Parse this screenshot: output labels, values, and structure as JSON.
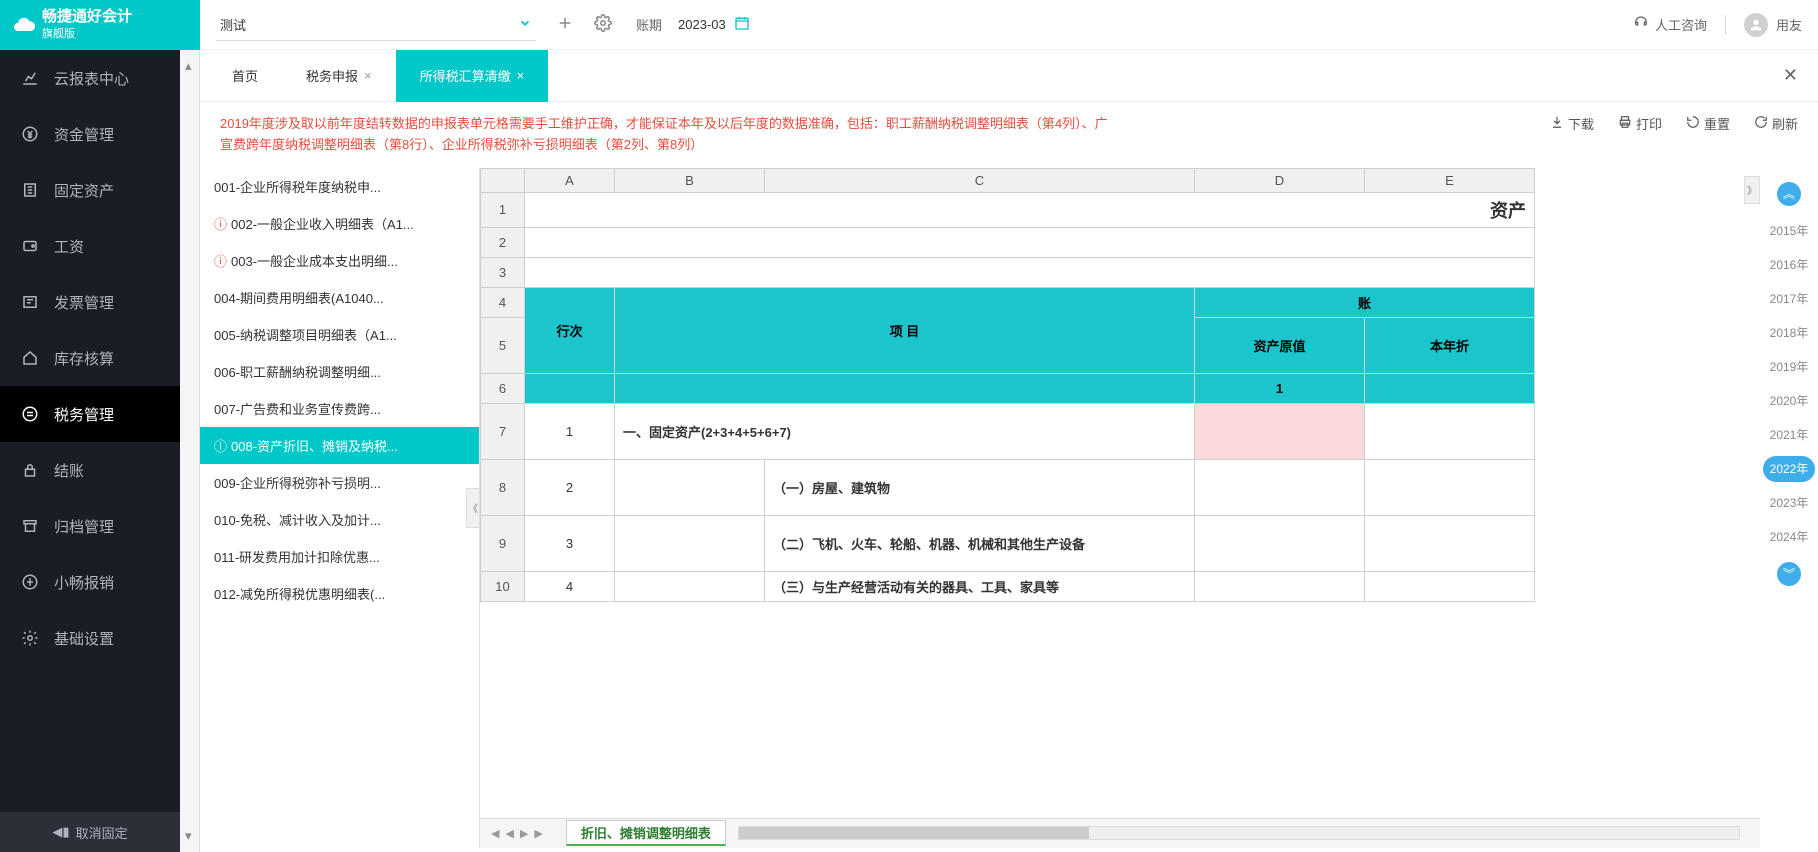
{
  "brand": {
    "name": "畅捷通好会计",
    "edition": "旗舰版"
  },
  "header": {
    "account": "测试",
    "period_label": "账期",
    "period_value": "2023-03",
    "consult": "人工咨询",
    "username": "用友"
  },
  "sidebar": {
    "items": [
      {
        "label": "云报表中心"
      },
      {
        "label": "资金管理"
      },
      {
        "label": "固定资产"
      },
      {
        "label": "工资"
      },
      {
        "label": "发票管理"
      },
      {
        "label": "库存核算"
      },
      {
        "label": "税务管理"
      },
      {
        "label": "结账"
      },
      {
        "label": "归档管理"
      },
      {
        "label": "小畅报销"
      },
      {
        "label": "基础设置"
      }
    ],
    "unpin": "取消固定"
  },
  "tabs": [
    {
      "label": "首页",
      "closable": false,
      "active": false
    },
    {
      "label": "税务申报",
      "closable": true,
      "active": false
    },
    {
      "label": "所得税汇算清缴",
      "closable": true,
      "active": true
    }
  ],
  "notice": "2019年度涉及取以前年度结转数据的申报表单元格需要手工维护正确，才能保证本年及以后年度的数据准确，包括：职工薪酬纳税调整明细表（第4列）、广宣费跨年度纳税调整明细表（第8行）、企业所得税弥补亏损明细表（第2列、第8列）",
  "toolbar": {
    "download": "下载",
    "print": "打印",
    "reset": "重置",
    "refresh": "刷新"
  },
  "forms": [
    {
      "label": "001-企业所得税年度纳税申...",
      "warn": false
    },
    {
      "label": "002-一般企业收入明细表（A1...",
      "warn": true
    },
    {
      "label": "003-一般企业成本支出明细...",
      "warn": true
    },
    {
      "label": "004-期间费用明细表(A1040...",
      "warn": false
    },
    {
      "label": "005-纳税调整项目明细表（A1...",
      "warn": false
    },
    {
      "label": "006-职工薪酬纳税调整明细...",
      "warn": false
    },
    {
      "label": "007-广告费和业务宣传费跨...",
      "warn": false
    },
    {
      "label": "008-资产折旧、摊销及纳税...",
      "warn": true
    },
    {
      "label": "009-企业所得税弥补亏损明...",
      "warn": false
    },
    {
      "label": "010-免税、减计收入及加计...",
      "warn": false
    },
    {
      "label": "011-研发费用加计扣除优惠...",
      "warn": false
    },
    {
      "label": "012-减免所得税优惠明细表(...",
      "warn": false
    }
  ],
  "active_form_index": 7,
  "sheet": {
    "cols": [
      "A",
      "B",
      "C",
      "D",
      "E"
    ],
    "title_partial": "资产",
    "header_row4": {
      "d": "账"
    },
    "header_row5": {
      "a": "行次",
      "bc": "项 目",
      "d": "资产原值",
      "e": "本年折"
    },
    "header_row6": {
      "d": "1"
    },
    "rows": [
      {
        "n": "7",
        "a": "1",
        "bc": "一、固定资产(2+3+4+5+6+7)"
      },
      {
        "n": "8",
        "a": "2",
        "c": "（一）房屋、建筑物"
      },
      {
        "n": "9",
        "a": "3",
        "c": "（二）飞机、火车、轮船、机器、机械和其他生产设备"
      },
      {
        "n": "10",
        "a": "4",
        "c": "（三）与生产经营活动有关的器具、工具、家具等"
      }
    ],
    "tab_name": "折旧、摊销调整明细表"
  },
  "years": [
    "2015年",
    "2016年",
    "2017年",
    "2018年",
    "2019年",
    "2020年",
    "2021年",
    "2022年",
    "2023年",
    "2024年"
  ],
  "active_year_index": 7,
  "colors": {
    "brand": "#00c8c8",
    "sidebar_bg": "#1a1e24",
    "teal": "#1cc4cc",
    "pink": "#f9d9d9",
    "notice": "#e74c3c"
  }
}
